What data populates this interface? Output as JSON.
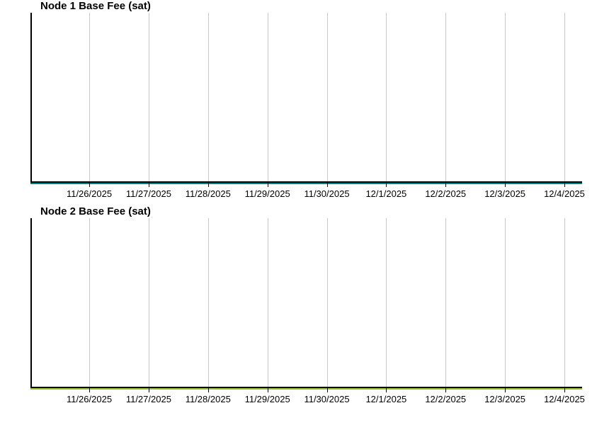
{
  "page": {
    "background_color": "#ffffff",
    "text_color": "#000000"
  },
  "chart_data": [
    {
      "type": "line",
      "title": "Node 1 Base Fee (sat)",
      "x": [
        "11/26/2025",
        "11/27/2025",
        "11/28/2025",
        "11/29/2025",
        "11/30/2025",
        "12/1/2025",
        "12/2/2025",
        "12/3/2025",
        "12/4/2025"
      ],
      "series": [
        {
          "name": "Node 1 Base Fee",
          "color": "#008080",
          "values": [
            0,
            0,
            0,
            0,
            0,
            0,
            0,
            0,
            0
          ]
        }
      ],
      "xlabel": "",
      "ylabel": "",
      "flat_at_baseline": true,
      "y_axis_tick_labels_visible": false,
      "grid": "vertical-only",
      "legend": false,
      "axis_color": "#000000",
      "gridline_color": "#c9c9c9",
      "tick_color": "#000000"
    },
    {
      "type": "line",
      "title": "Node 2 Base Fee (sat)",
      "x": [
        "11/26/2025",
        "11/27/2025",
        "11/28/2025",
        "11/29/2025",
        "11/30/2025",
        "12/1/2025",
        "12/2/2025",
        "12/3/2025",
        "12/4/2025"
      ],
      "series": [
        {
          "name": "Node 2 Base Fee",
          "color": "#9acd32",
          "values": [
            0,
            0,
            0,
            0,
            0,
            0,
            0,
            0,
            0
          ]
        }
      ],
      "xlabel": "",
      "ylabel": "",
      "flat_at_baseline": true,
      "y_axis_tick_labels_visible": false,
      "grid": "vertical-only",
      "legend": false,
      "axis_color": "#000000",
      "gridline_color": "#c9c9c9",
      "tick_color": "#000000"
    }
  ]
}
